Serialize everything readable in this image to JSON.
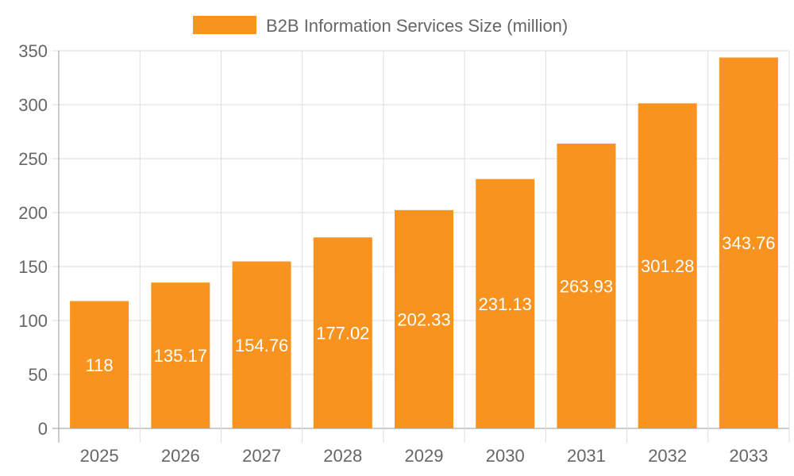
{
  "chart_data": {
    "type": "bar",
    "title": "",
    "xlabel": "",
    "ylabel": "",
    "categories": [
      "2025",
      "2026",
      "2027",
      "2028",
      "2029",
      "2030",
      "2031",
      "2032",
      "2033"
    ],
    "series": [
      {
        "name": "B2B Information Services Size (million)",
        "values": [
          118,
          135.17,
          154.76,
          177.02,
          202.33,
          231.13,
          263.93,
          301.28,
          343.76
        ],
        "color": "#f7931e"
      }
    ],
    "ylim": [
      0,
      350
    ],
    "yticks": [
      0,
      50,
      100,
      150,
      200,
      250,
      300,
      350
    ],
    "grid": true,
    "legend": "top",
    "data_labels": true
  }
}
